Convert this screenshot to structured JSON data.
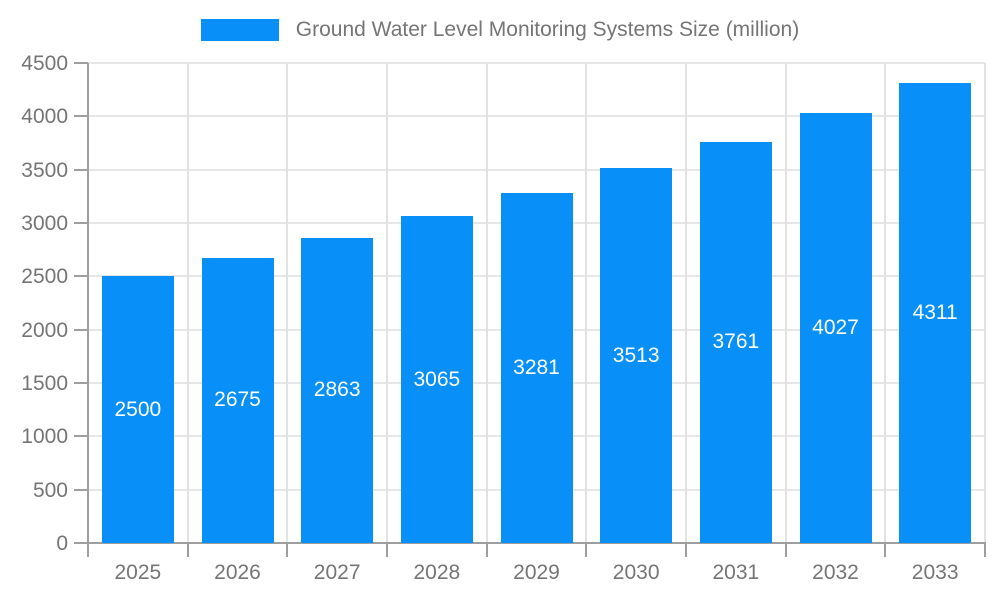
{
  "legend": {
    "label": "Ground Water Level Monitoring Systems Size (million)"
  },
  "chart_data": {
    "type": "bar",
    "title": "Ground Water Level Monitoring Systems Size (million)",
    "categories": [
      "2025",
      "2026",
      "2027",
      "2028",
      "2029",
      "2030",
      "2031",
      "2032",
      "2033"
    ],
    "values": [
      2500,
      2675,
      2863,
      3065,
      3281,
      3513,
      3761,
      4027,
      4311
    ],
    "xlabel": "",
    "ylabel": "",
    "ylim": [
      0,
      4500
    ],
    "ytick_step": 500,
    "ytick_labels": [
      "0",
      "500",
      "1000",
      "1500",
      "2000",
      "2500",
      "3000",
      "3500",
      "4000",
      "4500"
    ],
    "grid": true,
    "legend_position": "top",
    "bar_labels_inside": true,
    "colors": {
      "bar": "#0890f8",
      "bar_label": "#ffffff",
      "grid_h": "#e6e6e6",
      "grid_v": "#e2e2e2",
      "axis": "#9e9e9e",
      "text": "#757575",
      "background": "#ffffff"
    }
  }
}
